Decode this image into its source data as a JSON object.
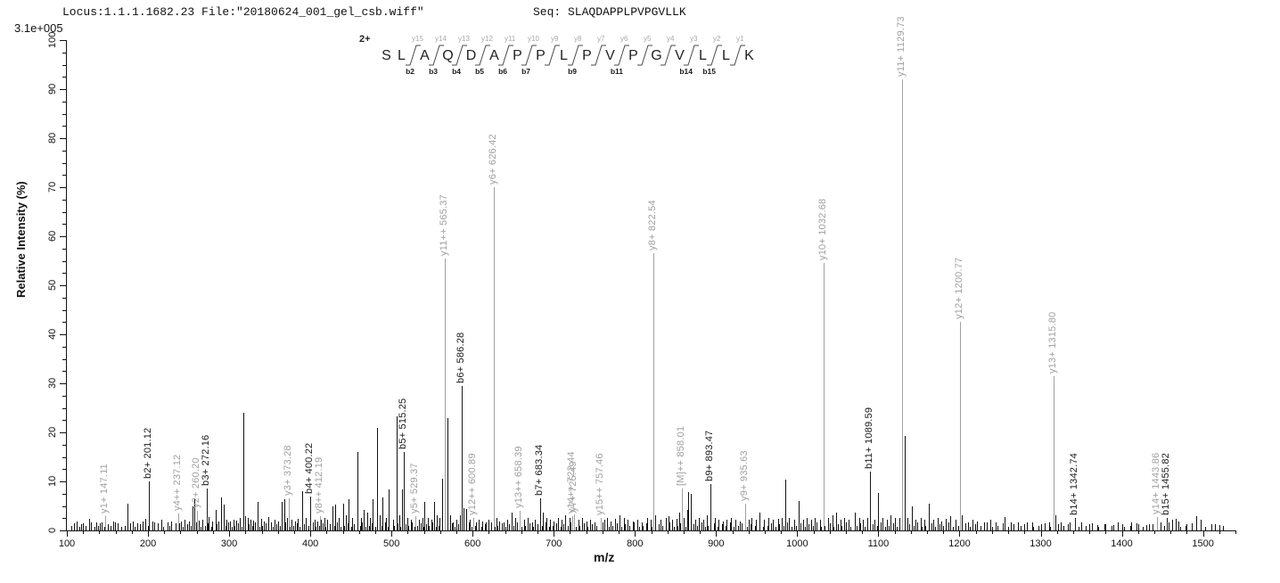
{
  "header": {
    "locus_file": "Locus:1.1.1.1682.23 File:\"20180624_001_gel_csb.wiff\"",
    "seq": "Seq: SLAQDAPPLPVPGVLLK"
  },
  "intensity_scale": "3.1e+005",
  "precursor_charge": "2+",
  "ladder": {
    "residues": [
      "S",
      "L",
      "A",
      "Q",
      "D",
      "A",
      "P",
      "P",
      "L",
      "P",
      "V",
      "P",
      "G",
      "V",
      "L",
      "L",
      "K"
    ],
    "marks": [
      {
        "after": 2,
        "y": "y15",
        "b": "b2"
      },
      {
        "after": 3,
        "y": "y14",
        "b": "b3"
      },
      {
        "after": 4,
        "y": "y13",
        "b": "b4"
      },
      {
        "after": 5,
        "y": "y12",
        "b": "b5"
      },
      {
        "after": 6,
        "y": "y11",
        "b": "b6"
      },
      {
        "after": 7,
        "y": "y10",
        "b": "b7"
      },
      {
        "after": 8,
        "y": "y9",
        "b": ""
      },
      {
        "after": 9,
        "y": "y8",
        "b": "b9"
      },
      {
        "after": 10,
        "y": "y7",
        "b": ""
      },
      {
        "after": 11,
        "y": "y6",
        "b": "b11"
      },
      {
        "after": 12,
        "y": "y5",
        "b": ""
      },
      {
        "after": 13,
        "y": "y4",
        "b": ""
      },
      {
        "after": 14,
        "y": "y3",
        "b": "b14"
      },
      {
        "after": 15,
        "y": "y2",
        "b": "b15"
      },
      {
        "after": 16,
        "y": "y1",
        "b": ""
      }
    ]
  },
  "chart_data": {
    "type": "bar",
    "subtype": "ms2-mass-spectrum",
    "xlabel": "m/z",
    "ylabel": "Relative  Intensity (%)",
    "x_range": [
      100,
      1540
    ],
    "y_range": [
      0,
      100
    ],
    "x_major_tick_step": 100,
    "x_minor_tick_step": 20,
    "y_major_tick_step": 10,
    "y_minor_tick_step": 2.5,
    "x_tick_labels": [
      100,
      200,
      300,
      400,
      500,
      600,
      700,
      800,
      900,
      1000,
      1100,
      1200,
      1300,
      1400,
      1500
    ],
    "y_tick_labels": [
      0,
      10,
      20,
      30,
      40,
      50,
      60,
      70,
      80,
      90,
      100
    ],
    "grid": false,
    "intensity_full_scale": "3.1e+005",
    "colors": {
      "b_ion": "#1a1a1a",
      "y_ion": "#a0a0a0",
      "unlabeled": "#111111"
    },
    "labeled_peaks": [
      {
        "label": "y1+ 147.11",
        "mz": 147.11,
        "intensity_pct": 3.0
      },
      {
        "label": "b2+ 201.12",
        "mz": 201.12,
        "intensity_pct": 10.0
      },
      {
        "label": "y4++ 237.12",
        "mz": 237.12,
        "intensity_pct": 3.5
      },
      {
        "label": "y2+ 260.20",
        "mz": 260.2,
        "intensity_pct": 4.0
      },
      {
        "label": "b3+ 272.16",
        "mz": 272.16,
        "intensity_pct": 8.5
      },
      {
        "label": "y3+ 373.28",
        "mz": 373.28,
        "intensity_pct": 6.5
      },
      {
        "label": "b4+ 400.22",
        "mz": 400.22,
        "intensity_pct": 7.0
      },
      {
        "label": "y8++ 412.19",
        "mz": 412.19,
        "intensity_pct": 3.0
      },
      {
        "label": "b5+ 515.25",
        "mz": 515.25,
        "intensity_pct": 16.0
      },
      {
        "label": "y5+ 529.37",
        "mz": 529.37,
        "intensity_pct": 3.0
      },
      {
        "label": "y11++ 565.37",
        "mz": 565.37,
        "intensity_pct": 55.5
      },
      {
        "label": "b6+ 586.28",
        "mz": 586.28,
        "intensity_pct": 29.5
      },
      {
        "label": "y12++ 600.89",
        "mz": 600.89,
        "intensity_pct": 2.5
      },
      {
        "label": "y6+ 626.42",
        "mz": 626.42,
        "intensity_pct": 70.0
      },
      {
        "label": "y13++ 658.39",
        "mz": 658.39,
        "intensity_pct": 4.0
      },
      {
        "label": "b7+ 683.34",
        "mz": 683.34,
        "intensity_pct": 6.5
      },
      {
        "label": "y14++ 722.44",
        "mz": 722.44,
        "intensity_pct": 3.0
      },
      {
        "label": "y7+ 725.49",
        "mz": 725.49,
        "intensity_pct": 3.2
      },
      {
        "label": "y15++ 757.46",
        "mz": 757.46,
        "intensity_pct": 2.5
      },
      {
        "label": "y8+ 822.54",
        "mz": 822.54,
        "intensity_pct": 56.5
      },
      {
        "label": "[M]++ 858.01",
        "mz": 858.01,
        "intensity_pct": 8.5
      },
      {
        "label": "b9+ 893.47",
        "mz": 893.47,
        "intensity_pct": 9.5
      },
      {
        "label": "y9+ 935.63",
        "mz": 935.63,
        "intensity_pct": 5.5
      },
      {
        "label": "y10+ 1032.68",
        "mz": 1032.68,
        "intensity_pct": 54.5
      },
      {
        "label": "b11+ 1089.59",
        "mz": 1089.59,
        "intensity_pct": 12.0
      },
      {
        "label": "y11+ 1129.73",
        "mz": 1129.73,
        "intensity_pct": 92.0
      },
      {
        "label": "y12+ 1200.77",
        "mz": 1200.77,
        "intensity_pct": 42.5
      },
      {
        "label": "y13+ 1315.80",
        "mz": 1315.8,
        "intensity_pct": 31.5
      },
      {
        "label": "b14+ 1342.74",
        "mz": 1342.74,
        "intensity_pct": 2.5
      },
      {
        "label": "y14+ 1443.86",
        "mz": 1443.86,
        "intensity_pct": 2.8
      },
      {
        "label": "b15+ 1455.82",
        "mz": 1455.82,
        "intensity_pct": 2.5
      }
    ],
    "noise_peaks": [
      [
        112,
        1.8
      ],
      [
        120,
        1.5
      ],
      [
        127,
        2.3
      ],
      [
        136,
        1.6
      ],
      [
        143,
        1.6
      ],
      [
        157,
        1.8
      ],
      [
        163,
        1.5
      ],
      [
        175,
        5.5
      ],
      [
        181,
        1.8
      ],
      [
        187,
        1.5
      ],
      [
        193,
        1.8
      ],
      [
        197,
        2.4
      ],
      [
        205,
        1.8
      ],
      [
        212,
        1.5
      ],
      [
        216,
        2.2
      ],
      [
        224,
        1.6
      ],
      [
        229,
        1.8
      ],
      [
        234,
        1.5
      ],
      [
        241,
        1.8
      ],
      [
        245,
        2.2
      ],
      [
        251,
        1.8
      ],
      [
        255,
        5.0
      ],
      [
        257,
        6.5
      ],
      [
        263,
        2.0
      ],
      [
        267,
        2.2
      ],
      [
        275,
        2.8
      ],
      [
        279,
        1.8
      ],
      [
        283,
        4.2
      ],
      [
        287,
        1.8
      ],
      [
        290,
        6.8
      ],
      [
        293,
        5.2
      ],
      [
        297,
        2.2
      ],
      [
        301,
        1.8
      ],
      [
        305,
        2.2
      ],
      [
        309,
        2.0
      ],
      [
        313,
        2.6
      ],
      [
        318,
        24.0
      ],
      [
        320,
        3.0
      ],
      [
        323,
        2.6
      ],
      [
        326,
        2.2
      ],
      [
        330,
        2.0
      ],
      [
        335,
        5.8
      ],
      [
        339,
        2.3
      ],
      [
        343,
        1.8
      ],
      [
        348,
        2.8
      ],
      [
        352,
        1.7
      ],
      [
        356,
        2.1
      ],
      [
        360,
        1.9
      ],
      [
        365,
        5.9
      ],
      [
        368,
        6.4
      ],
      [
        371,
        2.6
      ],
      [
        377,
        2.1
      ],
      [
        381,
        1.9
      ],
      [
        385,
        2.3
      ],
      [
        390,
        8.0
      ],
      [
        394,
        2.6
      ],
      [
        405,
        2.1
      ],
      [
        409,
        1.9
      ],
      [
        413,
        2.1
      ],
      [
        417,
        2.6
      ],
      [
        421,
        2.1
      ],
      [
        427,
        5.0
      ],
      [
        431,
        5.3
      ],
      [
        435,
        2.6
      ],
      [
        440,
        5.5
      ],
      [
        444,
        3.1
      ],
      [
        447,
        6.4
      ],
      [
        451,
        2.6
      ],
      [
        458,
        16.0
      ],
      [
        462,
        2.6
      ],
      [
        466,
        4.1
      ],
      [
        470,
        3.6
      ],
      [
        474,
        2.6
      ],
      [
        477,
        6.4
      ],
      [
        482,
        21.0
      ],
      [
        486,
        3.1
      ],
      [
        489,
        6.8
      ],
      [
        493,
        2.6
      ],
      [
        497,
        8.3
      ],
      [
        502,
        2.1
      ],
      [
        506,
        23.3
      ],
      [
        510,
        3.1
      ],
      [
        513,
        8.3
      ],
      [
        520,
        2.6
      ],
      [
        524,
        2.1
      ],
      [
        534,
        2.1
      ],
      [
        538,
        2.6
      ],
      [
        541,
        5.9
      ],
      [
        545,
        2.6
      ],
      [
        549,
        2.1
      ],
      [
        552,
        5.9
      ],
      [
        556,
        3.1
      ],
      [
        559,
        2.6
      ],
      [
        562,
        10.6
      ],
      [
        569,
        23.0
      ],
      [
        572,
        3.1
      ],
      [
        576,
        1.6
      ],
      [
        580,
        2.1
      ],
      [
        584,
        3.1
      ],
      [
        589,
        4.6
      ],
      [
        592,
        4.4
      ],
      [
        597,
        2.1
      ],
      [
        604,
        1.6
      ],
      [
        608,
        2.1
      ],
      [
        612,
        1.9
      ],
      [
        616,
        1.6
      ],
      [
        620,
        2.1
      ],
      [
        629,
        2.6
      ],
      [
        633,
        1.9
      ],
      [
        638,
        1.6
      ],
      [
        643,
        2.1
      ],
      [
        648,
        3.6
      ],
      [
        652,
        2.6
      ],
      [
        663,
        2.1
      ],
      [
        668,
        2.6
      ],
      [
        673,
        1.6
      ],
      [
        677,
        2.1
      ],
      [
        687,
        3.6
      ],
      [
        691,
        2.6
      ],
      [
        695,
        2.1
      ],
      [
        700,
        1.9
      ],
      [
        705,
        2.6
      ],
      [
        710,
        2.1
      ],
      [
        714,
        3.1
      ],
      [
        719,
        2.6
      ],
      [
        730,
        2.1
      ],
      [
        735,
        2.6
      ],
      [
        740,
        1.9
      ],
      [
        745,
        2.1
      ],
      [
        750,
        1.6
      ],
      [
        762,
        2.1
      ],
      [
        766,
        2.6
      ],
      [
        770,
        1.9
      ],
      [
        776,
        2.3
      ],
      [
        781,
        3.1
      ],
      [
        786,
        2.6
      ],
      [
        791,
        2.1
      ],
      [
        797,
        1.9
      ],
      [
        803,
        2.1
      ],
      [
        808,
        1.6
      ],
      [
        815,
        2.6
      ],
      [
        819,
        2.1
      ],
      [
        825,
        3.1
      ],
      [
        831,
        2.1
      ],
      [
        838,
        2.6
      ],
      [
        841,
        2.9
      ],
      [
        846,
        2.1
      ],
      [
        851,
        2.3
      ],
      [
        855,
        3.6
      ],
      [
        860,
        2.6
      ],
      [
        864,
        4.1
      ],
      [
        866,
        7.9
      ],
      [
        869,
        7.5
      ],
      [
        874,
        2.1
      ],
      [
        879,
        2.6
      ],
      [
        884,
        2.1
      ],
      [
        889,
        3.1
      ],
      [
        898,
        2.6
      ],
      [
        903,
        2.1
      ],
      [
        908,
        1.9
      ],
      [
        913,
        2.1
      ],
      [
        918,
        2.6
      ],
      [
        924,
        2.1
      ],
      [
        929,
        1.9
      ],
      [
        940,
        2.1
      ],
      [
        944,
        2.6
      ],
      [
        949,
        2.1
      ],
      [
        954,
        3.6
      ],
      [
        959,
        2.1
      ],
      [
        964,
        2.6
      ],
      [
        970,
        2.1
      ],
      [
        976,
        2.3
      ],
      [
        981,
        2.6
      ],
      [
        985,
        10.3
      ],
      [
        990,
        2.6
      ],
      [
        996,
        2.1
      ],
      [
        1002,
        6.0
      ],
      [
        1007,
        2.1
      ],
      [
        1012,
        2.6
      ],
      [
        1017,
        2.1
      ],
      [
        1022,
        2.6
      ],
      [
        1028,
        2.1
      ],
      [
        1038,
        2.6
      ],
      [
        1043,
        3.1
      ],
      [
        1048,
        3.6
      ],
      [
        1053,
        2.1
      ],
      [
        1058,
        2.6
      ],
      [
        1063,
        2.1
      ],
      [
        1071,
        3.6
      ],
      [
        1076,
        2.6
      ],
      [
        1081,
        2.1
      ],
      [
        1086,
        2.6
      ],
      [
        1095,
        2.1
      ],
      [
        1100,
        7.7
      ],
      [
        1105,
        2.6
      ],
      [
        1110,
        2.1
      ],
      [
        1115,
        3.1
      ],
      [
        1120,
        2.6
      ],
      [
        1126,
        2.6
      ],
      [
        1132,
        19.3
      ],
      [
        1136,
        2.6
      ],
      [
        1141,
        5.0
      ],
      [
        1146,
        2.1
      ],
      [
        1152,
        2.6
      ],
      [
        1157,
        2.1
      ],
      [
        1162,
        5.5
      ],
      [
        1168,
        2.1
      ],
      [
        1173,
        2.6
      ],
      [
        1178,
        1.9
      ],
      [
        1183,
        2.3
      ],
      [
        1189,
        2.9
      ],
      [
        1195,
        2.1
      ],
      [
        1203,
        3.1
      ],
      [
        1210,
        1.6
      ],
      [
        1216,
        2.1
      ],
      [
        1222,
        1.9
      ],
      [
        1230,
        1.6
      ],
      [
        1238,
        2.1
      ],
      [
        1245,
        1.6
      ],
      [
        1256,
        2.7
      ],
      [
        1263,
        1.6
      ],
      [
        1272,
        1.6
      ],
      [
        1280,
        1.3
      ],
      [
        1290,
        1.6
      ],
      [
        1300,
        1.3
      ],
      [
        1310,
        1.6
      ],
      [
        1318,
        3.1
      ],
      [
        1325,
        1.6
      ],
      [
        1333,
        1.3
      ],
      [
        1350,
        1.6
      ],
      [
        1360,
        1.3
      ],
      [
        1370,
        1.1
      ],
      [
        1380,
        1.3
      ],
      [
        1390,
        1.1
      ],
      [
        1400,
        1.3
      ],
      [
        1412,
        1.6
      ],
      [
        1420,
        1.3
      ],
      [
        1430,
        1.1
      ],
      [
        1438,
        1.3
      ],
      [
        1448,
        1.6
      ],
      [
        1462,
        2.1
      ],
      [
        1466,
        2.3
      ],
      [
        1470,
        1.9
      ],
      [
        1480,
        1.3
      ],
      [
        1492,
        3.0
      ],
      [
        1497,
        2.1
      ],
      [
        1510,
        1.3
      ],
      [
        1520,
        1.1
      ]
    ],
    "micro_noise_mz": [
      106,
      109,
      115,
      118,
      123,
      130,
      134,
      138,
      141,
      146,
      150,
      154,
      159,
      167,
      171,
      178,
      184,
      190,
      200,
      208,
      219,
      226,
      238,
      243,
      248,
      253,
      259,
      265,
      270,
      274,
      278,
      285,
      295,
      299,
      303,
      307,
      311,
      315,
      324,
      328,
      332,
      337,
      341,
      345,
      354,
      358,
      362,
      369,
      375,
      379,
      383,
      387,
      392,
      398,
      403,
      407,
      411,
      415,
      419,
      424,
      429,
      433,
      437,
      442,
      446,
      450,
      454,
      461,
      464,
      468,
      472,
      476,
      480,
      485,
      488,
      492,
      495,
      503,
      508,
      511,
      517,
      521,
      525,
      528,
      532,
      536,
      539,
      543,
      546,
      550,
      555,
      558,
      574,
      578,
      582,
      587,
      595,
      599,
      603,
      607,
      611,
      615,
      619,
      623,
      627,
      631,
      636,
      640,
      645,
      650,
      655,
      660,
      665,
      670,
      675,
      680,
      685,
      690,
      694,
      699,
      703,
      708,
      712,
      717,
      721,
      727,
      732,
      737,
      742,
      747,
      752,
      760,
      768,
      772,
      778,
      783,
      788,
      793,
      799,
      805,
      810,
      814,
      821,
      829,
      834,
      843,
      848,
      852,
      856,
      862,
      872,
      877,
      882,
      887,
      890,
      897,
      902,
      907,
      912,
      917,
      922,
      927,
      932,
      938,
      943,
      948,
      953,
      958,
      963,
      968,
      973,
      978,
      983,
      988,
      993,
      998,
      1004,
      1009,
      1014,
      1019,
      1024,
      1029,
      1034,
      1040,
      1045,
      1050,
      1055,
      1060,
      1066,
      1073,
      1078,
      1083,
      1093,
      1098,
      1103,
      1108,
      1113,
      1118,
      1123,
      1138,
      1143,
      1148,
      1153,
      1158,
      1165,
      1170,
      1175,
      1180,
      1186,
      1192,
      1198,
      1207,
      1213,
      1219,
      1226,
      1233,
      1240,
      1247,
      1253,
      1260,
      1267,
      1275,
      1283,
      1291,
      1297,
      1305,
      1312,
      1321,
      1328,
      1336,
      1347,
      1355,
      1363,
      1371,
      1379,
      1387,
      1395,
      1403,
      1410,
      1418,
      1426,
      1434,
      1452,
      1458,
      1472,
      1478,
      1486,
      1503,
      1515,
      1525
    ],
    "micro_noise_height_cycle": [
      0.9,
      1.4,
      0.7,
      1.2,
      1.0,
      1.6,
      0.8
    ]
  }
}
